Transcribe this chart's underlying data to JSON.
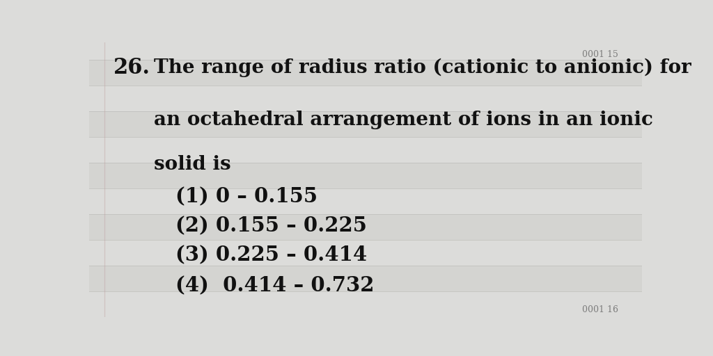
{
  "question_number": "26.",
  "question_text_line1": "The range of radius ratio (cationic to anionic) for",
  "question_text_line2": "an octahedral arrangement of ions in an ionic",
  "question_text_line3": "solid is",
  "options": [
    "(1) 0 – 0.155",
    "(2) 0.155 – 0.225",
    "(3) 0.225 – 0.414",
    "(4)  0.414 – 0.732"
  ],
  "text_color": "#111111",
  "page_bg": "#dcdcda",
  "font_size_q_num": 22,
  "font_size_question": 20,
  "font_size_options": 21,
  "line_color": "#b8b8b4",
  "line_color2": "#c8c8c4",
  "left_margin_color": "#c8c5c0",
  "row_light": "#dcdcda",
  "row_dark": "#cecec9"
}
